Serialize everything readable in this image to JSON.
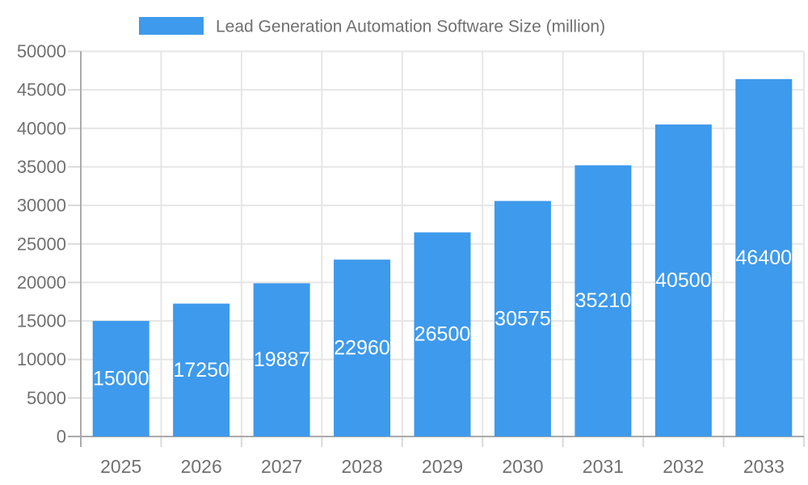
{
  "legend": {
    "label": "Lead Generation Automation Software Size (million)",
    "swatch_color": "#3E9AEC",
    "text_color": "#707070",
    "position": "top"
  },
  "chart_data": {
    "type": "bar",
    "title": "Lead Generation Automation Software Size (million)",
    "categories": [
      "2025",
      "2026",
      "2027",
      "2028",
      "2029",
      "2030",
      "2031",
      "2032",
      "2033"
    ],
    "values": [
      15000,
      17250,
      19887,
      22960,
      26500,
      30575,
      35210,
      40500,
      46400
    ],
    "xlabel": "",
    "ylabel": "",
    "ylim": [
      0,
      50000
    ],
    "yticks": [
      0,
      5000,
      10000,
      15000,
      20000,
      25000,
      30000,
      35000,
      40000,
      45000,
      50000
    ],
    "grid": true,
    "legend_position": "top",
    "bar_color": "#3E9AEC",
    "value_label_color": "#ffffff",
    "value_label_position": "inside-center",
    "axis_color": "#ababab",
    "grid_color": "#e6e6e6",
    "tick_color": "#d9d9d9",
    "tick_text_color": "#707070"
  }
}
